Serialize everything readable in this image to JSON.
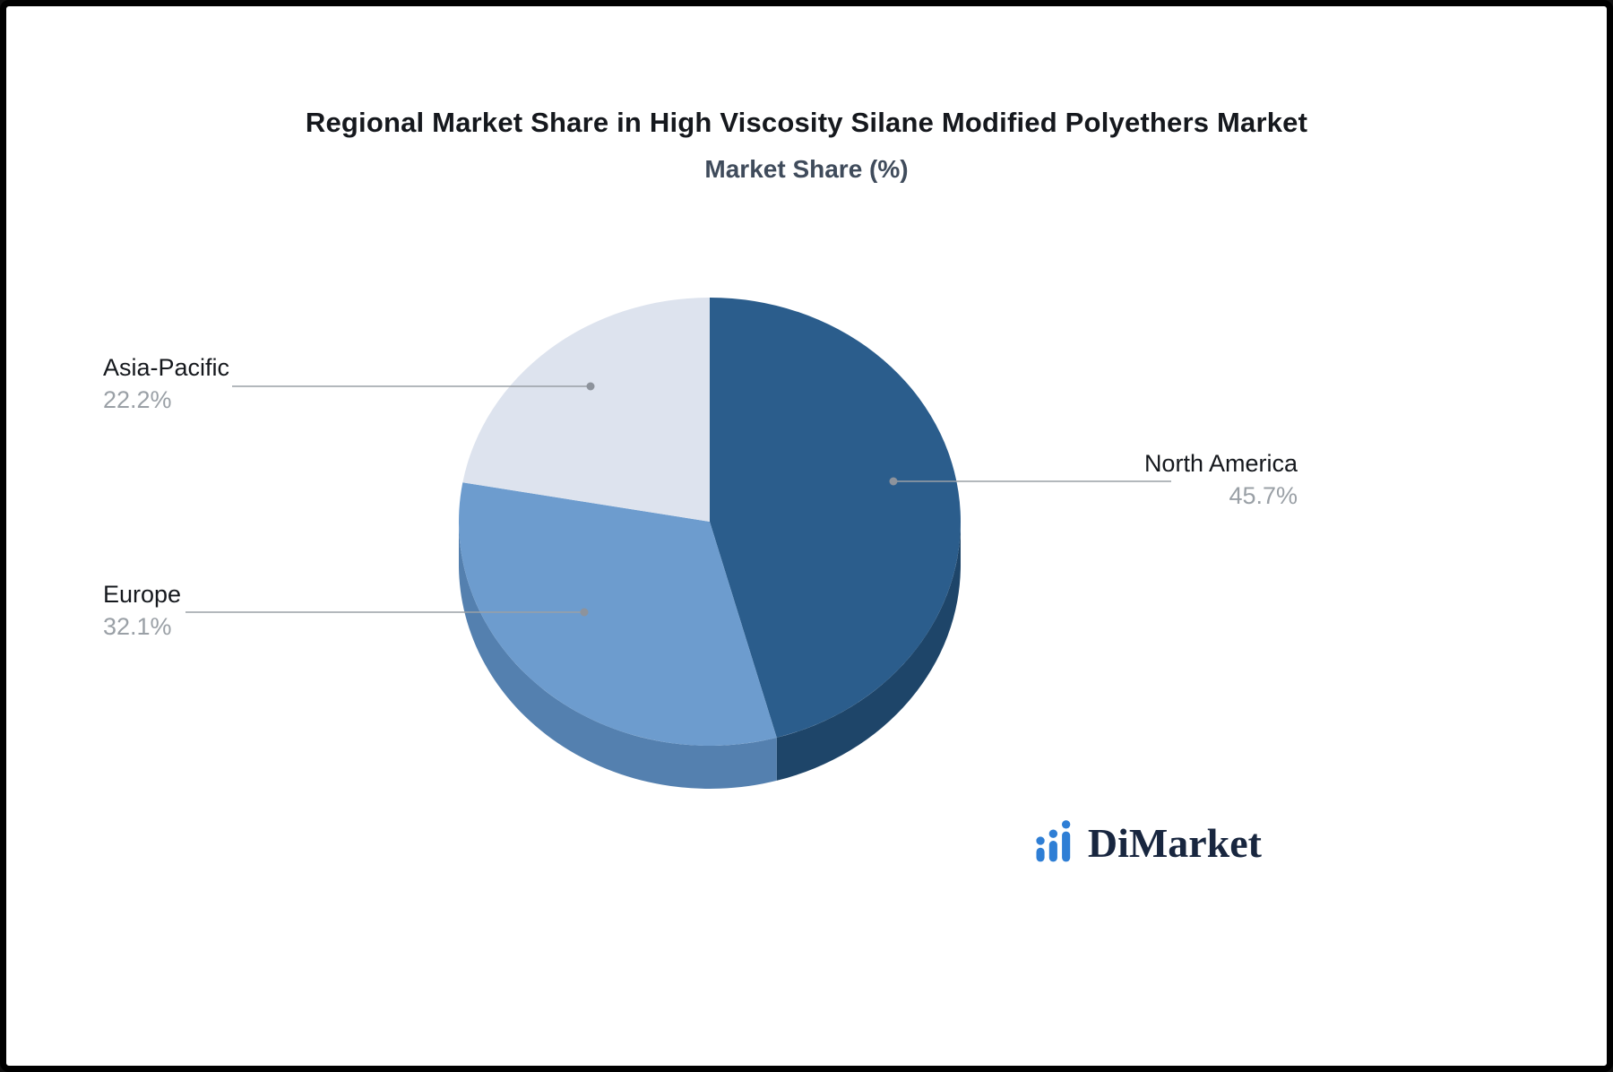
{
  "chart_data": {
    "type": "pie",
    "title": "Regional Market Share in High Viscosity Silane Modified Polyethers Market",
    "subtitle": "Market Share (%)",
    "labels": [
      "North America",
      "Europe",
      "Asia-Pacific"
    ],
    "values": [
      45.7,
      32.1,
      22.2
    ],
    "value_labels": [
      "45.7%",
      "32.1%",
      "22.2%"
    ],
    "colors": [
      "#2B5D8C",
      "#6D9CCE",
      "#DDE3EE"
    ],
    "depth_colors": [
      "#1E4569",
      "#5480AF",
      "#B9C4D6"
    ],
    "start_angle_deg": 0,
    "direction": "clockwise",
    "effect": "3d-depth",
    "legend_position": "none",
    "label_style": {
      "name_color": "#15181d",
      "value_color": "#9aa0a6",
      "leader_line_color": "#9aa0a6",
      "leader_dot_color": "#8d939c"
    },
    "background": "#ffffff"
  },
  "branding": {
    "logo_text": "DiMarket",
    "logo_text_color": "#18263f",
    "icon_color": "#2E7ED5",
    "icon_name": "bar-chart-dots-icon"
  }
}
